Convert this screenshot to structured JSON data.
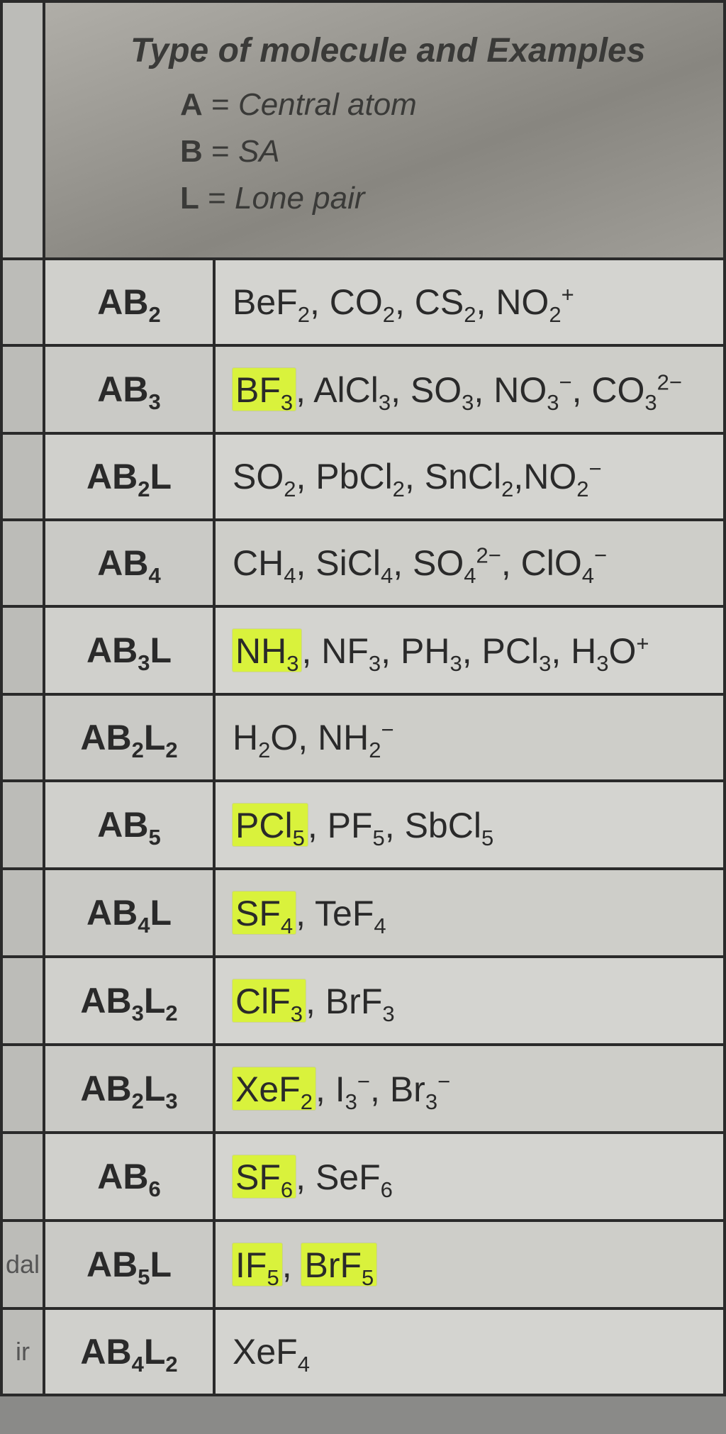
{
  "header": {
    "title": "Type of molecule and Examples",
    "lineA_label": "A",
    "lineA_text": "Central atom",
    "lineB_label": "B",
    "lineB_text": "SA",
    "lineL_label": "L",
    "lineL_text": "Lone pair"
  },
  "left_stubs": {
    "r11": "dal",
    "r12": "ir"
  },
  "rows": [
    {
      "type": {
        "base": "AB",
        "sub": "2"
      },
      "examples": [
        {
          "text": "BeF",
          "sub": "2",
          "sup": ""
        },
        {
          "text": "CO",
          "sub": "2",
          "sup": ""
        },
        {
          "text": "CS",
          "sub": "2",
          "sup": ""
        },
        {
          "text": "NO",
          "sub": "2",
          "sup": "+"
        }
      ],
      "highlight": []
    },
    {
      "type": {
        "base": "AB",
        "sub": "3"
      },
      "examples": [
        {
          "text": "BF",
          "sub": "3",
          "sup": ""
        },
        {
          "text": "AlCl",
          "sub": "3",
          "sup": ""
        },
        {
          "text": "SO",
          "sub": "3",
          "sup": ""
        },
        {
          "text": "NO",
          "sub": "3",
          "sup": "−"
        },
        {
          "text": "CO",
          "sub": "3",
          "sup": "2−"
        }
      ],
      "highlight": [
        0
      ]
    },
    {
      "type": {
        "base": "AB",
        "sub": "2",
        "tail": "L"
      },
      "examples": [
        {
          "text": "SO",
          "sub": "2",
          "sup": ""
        },
        {
          "text": "PbCl",
          "sub": "2",
          "sup": ""
        },
        {
          "text": "SnCl",
          "sub": "2",
          "sup": ""
        },
        {
          "text": "NO",
          "sub": "2",
          "sup": "−"
        }
      ],
      "highlight": []
    },
    {
      "type": {
        "base": "AB",
        "sub": "4"
      },
      "examples": [
        {
          "text": "CH",
          "sub": "4",
          "sup": ""
        },
        {
          "text": "SiCl",
          "sub": "4",
          "sup": ""
        },
        {
          "text": "SO",
          "sub": "4",
          "sup": "2−"
        },
        {
          "text": "ClO",
          "sub": "4",
          "sup": "−"
        }
      ],
      "highlight": []
    },
    {
      "type": {
        "base": "AB",
        "sub": "3",
        "tail": "L"
      },
      "examples": [
        {
          "text": "NH",
          "sub": "3",
          "sup": ""
        },
        {
          "text": "NF",
          "sub": "3",
          "sup": ""
        },
        {
          "text": "PH",
          "sub": "3",
          "sup": ""
        },
        {
          "text": "PCl",
          "sub": "3",
          "sup": ""
        },
        {
          "text": "H",
          "sub": "3",
          "sup": "",
          "post": "O",
          "postsup": "+"
        }
      ],
      "highlight": [
        0
      ]
    },
    {
      "type": {
        "base": "AB",
        "sub": "2",
        "tail": "L",
        "tailsub": "2"
      },
      "examples": [
        {
          "text": "H",
          "sub": "2",
          "sup": "",
          "post": "O"
        },
        {
          "text": "NH",
          "sub": "2",
          "sup": "−"
        }
      ],
      "highlight": []
    },
    {
      "type": {
        "base": "AB",
        "sub": "5"
      },
      "examples": [
        {
          "text": "PCl",
          "sub": "5",
          "sup": ""
        },
        {
          "text": "PF",
          "sub": "5",
          "sup": ""
        },
        {
          "text": "SbCl",
          "sub": "5",
          "sup": ""
        }
      ],
      "highlight": [
        0
      ]
    },
    {
      "type": {
        "base": "AB",
        "sub": "4",
        "tail": "L"
      },
      "examples": [
        {
          "text": "SF",
          "sub": "4",
          "sup": ""
        },
        {
          "text": "TeF",
          "sub": "4",
          "sup": ""
        }
      ],
      "highlight": [
        0
      ]
    },
    {
      "type": {
        "base": "AB",
        "sub": "3",
        "tail": "L",
        "tailsub": "2"
      },
      "examples": [
        {
          "text": "ClF",
          "sub": "3",
          "sup": ""
        },
        {
          "text": "BrF",
          "sub": "3",
          "sup": ""
        }
      ],
      "highlight": [
        0
      ]
    },
    {
      "type": {
        "base": "AB",
        "sub": "2",
        "tail": "L",
        "tailsub": "3"
      },
      "examples": [
        {
          "text": "XeF",
          "sub": "2",
          "sup": ""
        },
        {
          "text": "I",
          "sub": "3",
          "sup": "−"
        },
        {
          "text": "Br",
          "sub": "3",
          "sup": "−"
        }
      ],
      "highlight": [
        0
      ]
    },
    {
      "type": {
        "base": "AB",
        "sub": "6"
      },
      "examples": [
        {
          "text": "SF",
          "sub": "6",
          "sup": ""
        },
        {
          "text": "SeF",
          "sub": "6",
          "sup": ""
        }
      ],
      "highlight": [
        0
      ]
    },
    {
      "type": {
        "base": "AB",
        "sub": "5",
        "tail": "L"
      },
      "examples": [
        {
          "text": "IF",
          "sub": "5",
          "sup": ""
        },
        {
          "text": "BrF",
          "sub": "5",
          "sup": ""
        }
      ],
      "highlight": [
        0,
        1
      ]
    },
    {
      "type": {
        "base": "AB",
        "sub": "4",
        "tail": "L",
        "tailsub": "2"
      },
      "examples": [
        {
          "text": "XeF",
          "sub": "4",
          "sup": ""
        }
      ],
      "highlight": []
    }
  ],
  "colors": {
    "highlight": "#d9f23c",
    "border": "#2a2a2a",
    "cell_bg": "#d0d0cc",
    "header_bg": "#9c9a94"
  }
}
